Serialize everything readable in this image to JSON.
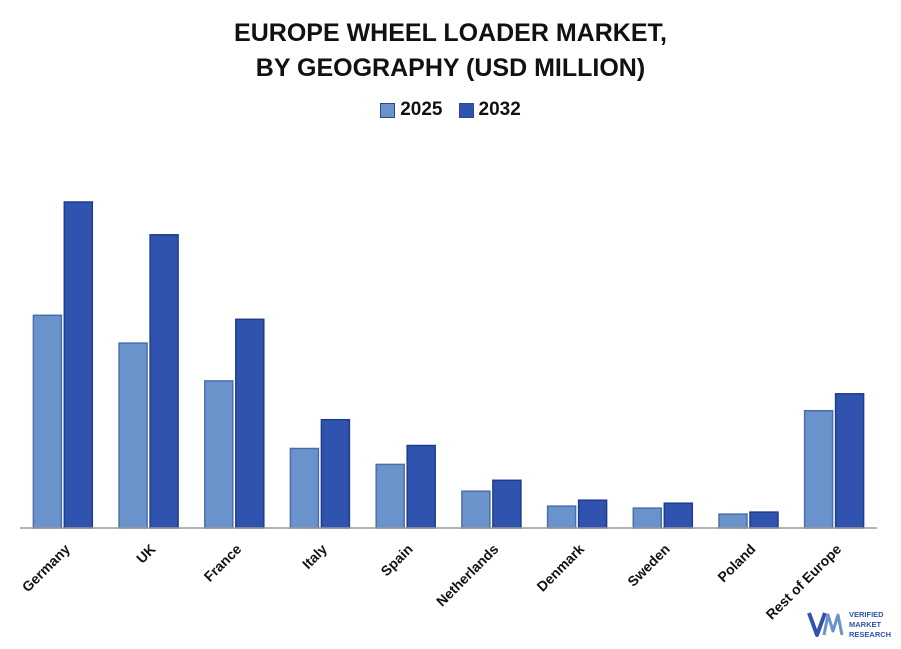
{
  "title_line1": "EUROPE WHEEL LOADER MARKET,",
  "title_line2": "BY GEOGRAPHY (USD MILLION)",
  "logo": {
    "line1": "VERIFIED",
    "line2": "MARKET",
    "line3": "RESEARCH"
  },
  "colors": {
    "series_2025": "#6b93cb",
    "series_2032": "#2f53ae",
    "axis": "#9a9a9a"
  },
  "chart_data": {
    "type": "bar",
    "title": "EUROPE WHEEL LOADER MARKET, BY GEOGRAPHY (USD MILLION)",
    "categories": [
      "Germany",
      "UK",
      "France",
      "Italy",
      "Spain",
      "Netherlands",
      "Denmark",
      "Sweden",
      "Poland",
      "Rest of Europe"
    ],
    "series": [
      {
        "name": "2025",
        "values": [
          214,
          186,
          148,
          80,
          64,
          37,
          22,
          20,
          14,
          118
        ]
      },
      {
        "name": "2032",
        "values": [
          328,
          295,
          210,
          109,
          83,
          48,
          28,
          25,
          16,
          135
        ]
      }
    ],
    "ylim": [
      0,
      330
    ],
    "xlabel": "",
    "ylabel": "",
    "grid": false,
    "legend_position": "top-center"
  }
}
